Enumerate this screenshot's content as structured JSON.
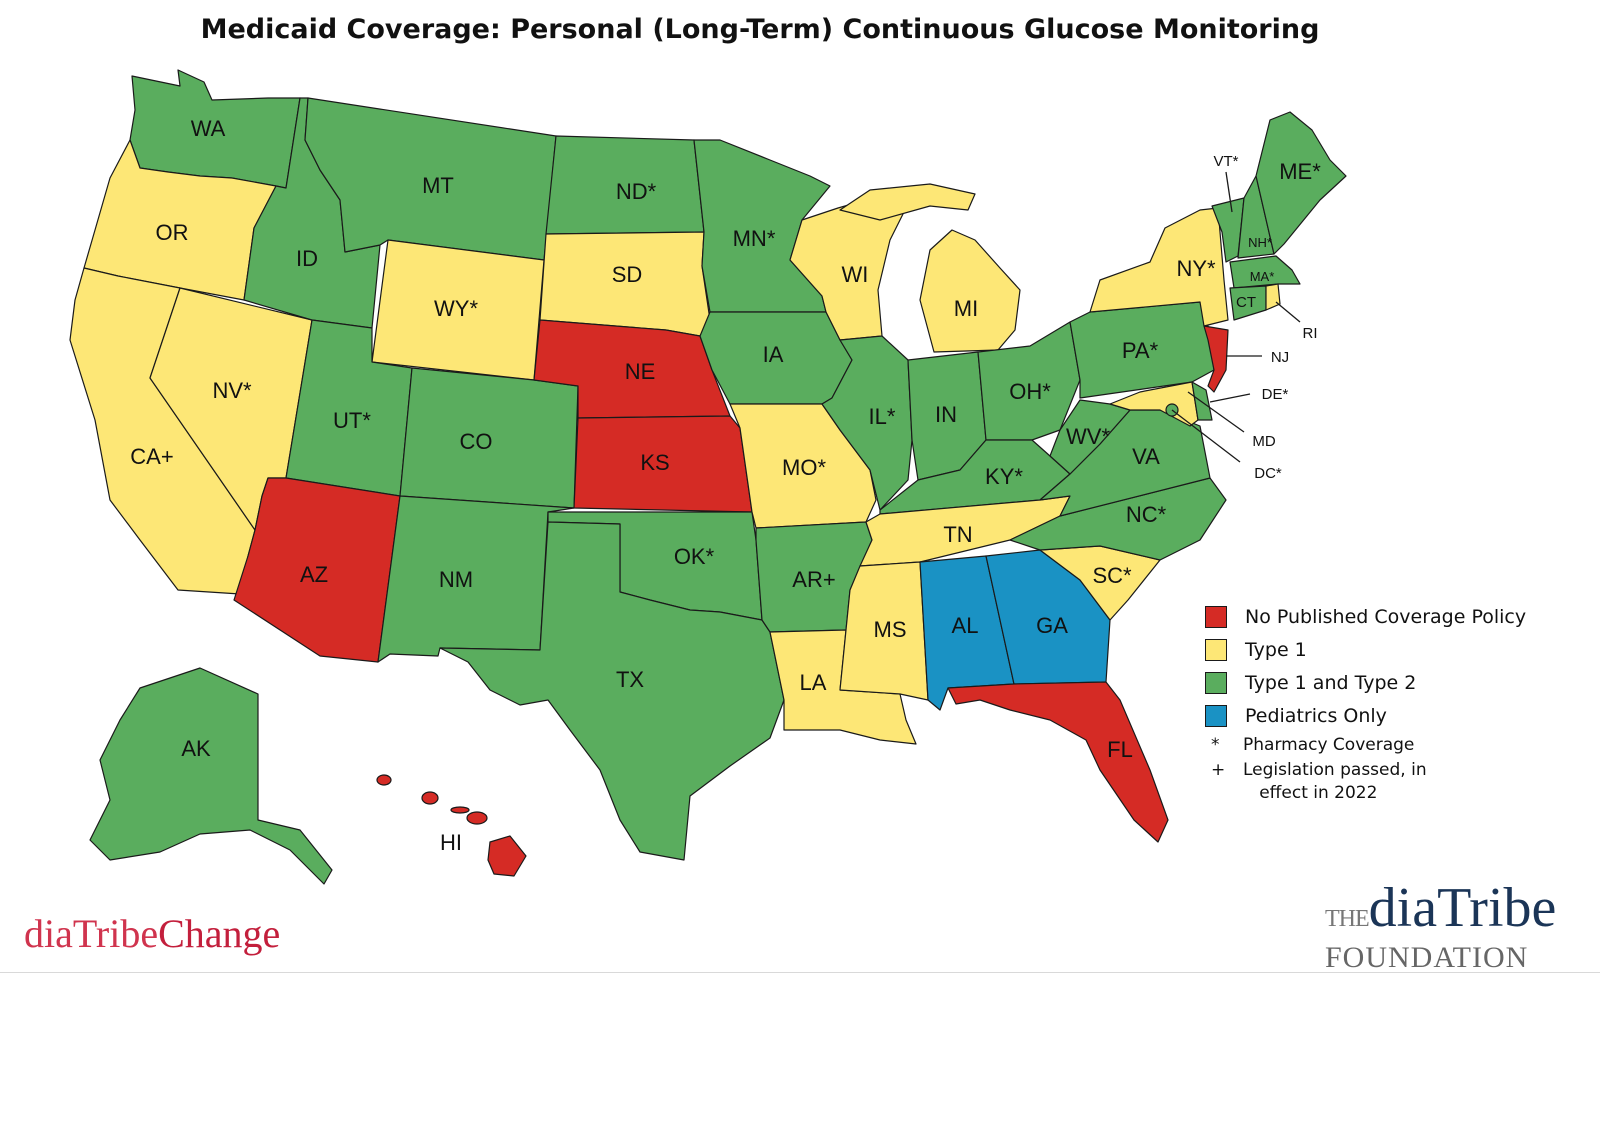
{
  "title": "Medicaid Coverage: Personal (Long-Term) Continuous Glucose Monitoring",
  "colors": {
    "none": "#d52b25",
    "type1": "#fde776",
    "type1_type2": "#5aad5e",
    "pediatrics": "#1a92c4"
  },
  "states": {
    "WA": {
      "label": "WA",
      "coverage": "Type 1 and Type 2"
    },
    "OR": {
      "label": "OR",
      "coverage": "Type 1"
    },
    "CA": {
      "label": "CA+",
      "coverage": "Type 1"
    },
    "NV": {
      "label": "NV*",
      "coverage": "Type 1"
    },
    "ID": {
      "label": "ID",
      "coverage": "Type 1 and Type 2"
    },
    "MT": {
      "label": "MT",
      "coverage": "Type 1 and Type 2"
    },
    "WY": {
      "label": "WY*",
      "coverage": "Type 1"
    },
    "UT": {
      "label": "UT*",
      "coverage": "Type 1 and Type 2"
    },
    "AZ": {
      "label": "AZ",
      "coverage": "No Published Coverage Policy"
    },
    "CO": {
      "label": "CO",
      "coverage": "Type 1 and Type 2"
    },
    "NM": {
      "label": "NM",
      "coverage": "Type 1 and Type 2"
    },
    "ND": {
      "label": "ND*",
      "coverage": "Type 1 and Type 2"
    },
    "SD": {
      "label": "SD",
      "coverage": "Type 1"
    },
    "NE": {
      "label": "NE",
      "coverage": "No Published Coverage Policy"
    },
    "KS": {
      "label": "KS",
      "coverage": "No Published Coverage Policy"
    },
    "OK": {
      "label": "OK*",
      "coverage": "Type 1 and Type 2"
    },
    "TX": {
      "label": "TX",
      "coverage": "Type 1 and Type 2"
    },
    "MN": {
      "label": "MN*",
      "coverage": "Type 1 and Type 2"
    },
    "IA": {
      "label": "IA",
      "coverage": "Type 1 and Type 2"
    },
    "MO": {
      "label": "MO*",
      "coverage": "Type 1"
    },
    "AR": {
      "label": "AR+",
      "coverage": "Type 1 and Type 2"
    },
    "LA": {
      "label": "LA",
      "coverage": "Type 1"
    },
    "WI": {
      "label": "WI",
      "coverage": "Type 1"
    },
    "IL": {
      "label": "IL*",
      "coverage": "Type 1 and Type 2"
    },
    "MI": {
      "label": "MI",
      "coverage": "Type 1"
    },
    "IN": {
      "label": "IN",
      "coverage": "Type 1 and Type 2"
    },
    "OH": {
      "label": "OH*",
      "coverage": "Type 1 and Type 2"
    },
    "KY": {
      "label": "KY*",
      "coverage": "Type 1 and Type 2"
    },
    "TN": {
      "label": "TN",
      "coverage": "Type 1"
    },
    "MS": {
      "label": "MS",
      "coverage": "Type 1"
    },
    "AL": {
      "label": "AL",
      "coverage": "Pediatrics Only"
    },
    "GA": {
      "label": "GA",
      "coverage": "Pediatrics Only"
    },
    "FL": {
      "label": "FL",
      "coverage": "No Published Coverage Policy"
    },
    "SC": {
      "label": "SC*",
      "coverage": "Type 1"
    },
    "NC": {
      "label": "NC*",
      "coverage": "Type 1 and Type 2"
    },
    "VA": {
      "label": "VA",
      "coverage": "Type 1 and Type 2"
    },
    "WV": {
      "label": "WV*",
      "coverage": "Type 1 and Type 2"
    },
    "PA": {
      "label": "PA*",
      "coverage": "Type 1 and Type 2"
    },
    "NY": {
      "label": "NY*",
      "coverage": "Type 1"
    },
    "NJ": {
      "label": "NJ",
      "coverage": "No Published Coverage Policy"
    },
    "DE": {
      "label": "DE*",
      "coverage": "Type 1 and Type 2"
    },
    "MD": {
      "label": "MD",
      "coverage": "Type 1"
    },
    "DC": {
      "label": "DC*",
      "coverage": "Type 1 and Type 2"
    },
    "VT": {
      "label": "VT*",
      "coverage": "Type 1 and Type 2"
    },
    "NH": {
      "label": "NH*",
      "coverage": "Type 1 and Type 2"
    },
    "ME": {
      "label": "ME*",
      "coverage": "Type 1 and Type 2"
    },
    "MA": {
      "label": "MA*",
      "coverage": "Type 1 and Type 2"
    },
    "CT": {
      "label": "CT",
      "coverage": "Type 1 and Type 2"
    },
    "RI": {
      "label": "RI",
      "coverage": "Type 1"
    },
    "AK": {
      "label": "AK",
      "coverage": "Type 1 and Type 2"
    },
    "HI": {
      "label": "HI",
      "coverage": "No Published Coverage Policy"
    }
  },
  "legend": {
    "none": "No Published Coverage Policy",
    "type1": "Type 1",
    "type1_type2": "Type 1 and Type 2",
    "pediatrics": "Pediatrics Only",
    "pharmacy_symbol": "*",
    "pharmacy_label": "Pharmacy Coverage",
    "legislation_symbol": "+",
    "legislation_label": "Legislation passed, in\n   effect in 2022"
  },
  "logos": {
    "left_prefix": "diaTribe",
    "left_suffix": "Change",
    "right_the": "THE",
    "right_brand": "diaTribe",
    "right_line2": "FOUNDATION"
  }
}
